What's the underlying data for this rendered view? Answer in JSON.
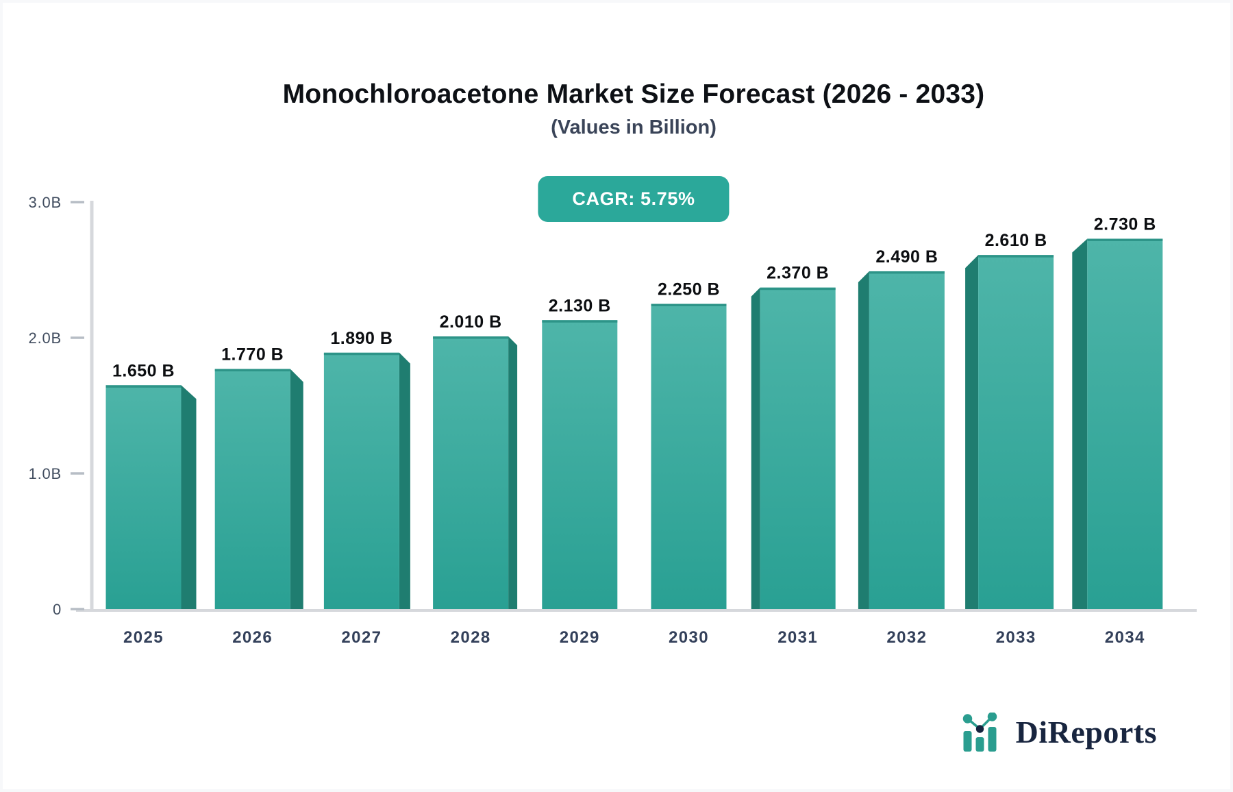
{
  "header": {
    "title": "Monochloroacetone Market Size Forecast (2026 - 2033)",
    "subtitle": "(Values in Billion)"
  },
  "badge": {
    "label": "CAGR: 5.75%",
    "background": "#2ba89a",
    "text_color": "#ffffff"
  },
  "brand": {
    "name": "DiReports",
    "icon": "mini-bar-chart-icon",
    "text_color": "#18253f",
    "icon_color": "#2a9d8f",
    "icon_dot_color": "#16233f"
  },
  "chart_data": {
    "type": "bar",
    "title": "Monochloroacetone Market Size Forecast (2026 - 2033)",
    "subtitle": "(Values in Billion)",
    "cagr": "5.75%",
    "unit": "Billion",
    "categories": [
      "2025",
      "2026",
      "2027",
      "2028",
      "2029",
      "2030",
      "2031",
      "2032",
      "2033",
      "2034"
    ],
    "values": [
      1.65,
      1.77,
      1.89,
      2.01,
      2.13,
      2.25,
      2.37,
      2.49,
      2.61,
      2.73
    ],
    "bar_labels": [
      "1.650 B",
      "1.770 B",
      "1.890 B",
      "2.010 B",
      "2.130 B",
      "2.250 B",
      "2.370 B",
      "2.490 B",
      "2.610 B",
      "2.730 B"
    ],
    "ylim": [
      0,
      3.0
    ],
    "yticks": [
      {
        "value": 0,
        "label": "0"
      },
      {
        "value": 1,
        "label": "1.0B"
      },
      {
        "value": 2,
        "label": "2.0B"
      },
      {
        "value": 3,
        "label": "3.0B"
      }
    ],
    "grid": false,
    "legend": false,
    "style": "3d-extruded-bars-facing-center",
    "colors": {
      "bar_top": "#4eb5a9",
      "bar_bottom": "#29a093",
      "bar_side": "#1f7d70",
      "bar_edge": "#2d9488",
      "axis_line": "#d6d8dc",
      "tick": "#b7bdc5",
      "tick_label": "#424e60",
      "category_label": "#33405a",
      "value_label": "#0c0e11"
    }
  }
}
